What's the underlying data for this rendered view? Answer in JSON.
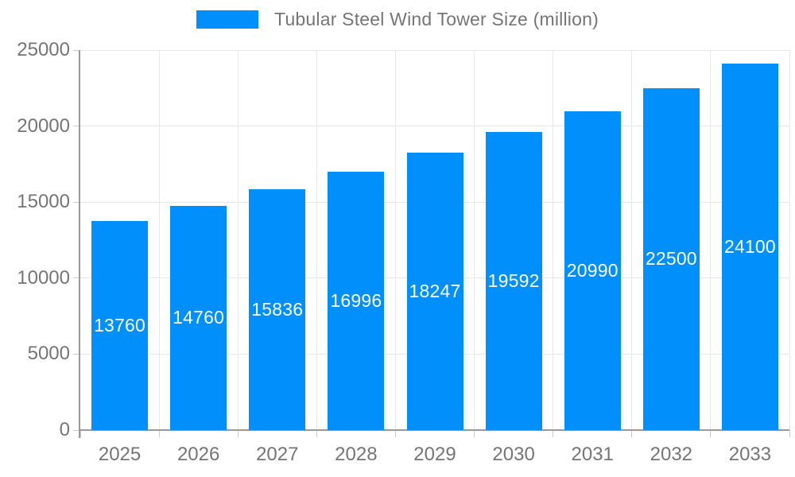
{
  "legend": {
    "label": "Tubular Steel Wind Tower Size (million)"
  },
  "chart_data": {
    "type": "bar",
    "title": "Tubular Steel Wind Tower Size (million)",
    "xlabel": "",
    "ylabel": "",
    "categories": [
      "2025",
      "2026",
      "2027",
      "2028",
      "2029",
      "2030",
      "2031",
      "2032",
      "2033"
    ],
    "values": [
      13760,
      14760,
      15836,
      16996,
      18247,
      19592,
      20990,
      22500,
      24100
    ],
    "value_labels": [
      "13760",
      "14760",
      "15836",
      "16996",
      "18247",
      "19592",
      "20990",
      "22500",
      "24100"
    ],
    "yticks": [
      0,
      5000,
      10000,
      15000,
      20000,
      25000
    ],
    "ytick_labels": [
      "0",
      "5000",
      "10000",
      "15000",
      "20000",
      "25000"
    ],
    "ylim": [
      0,
      25000
    ],
    "grid": true,
    "legend_position": "top",
    "bar_color": "#008FFB",
    "value_label_color": "#ffffff",
    "axis_line_color": "#999999",
    "grid_color": "#e7e7e7",
    "tick_mark_color": "#cccccc",
    "tick_label_color": "#757575",
    "legend_label_color": "#757575",
    "background_color": "#ffffff"
  }
}
